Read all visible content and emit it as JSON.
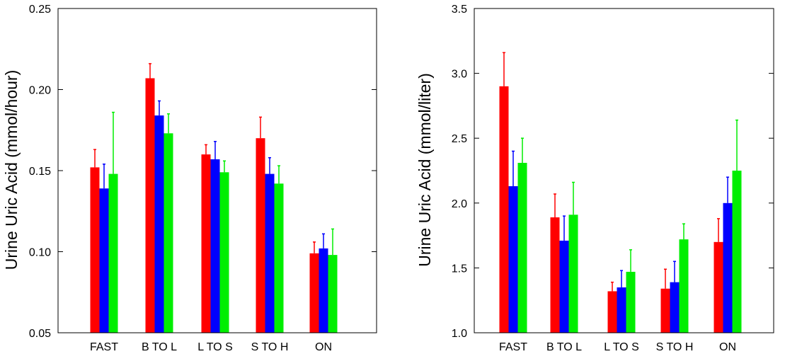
{
  "chart_data": [
    {
      "type": "bar",
      "title": "",
      "xlabel": "",
      "ylabel": "Urine Uric Acid (mmol/hour)",
      "ylim": [
        0.05,
        0.25
      ],
      "yticks": [
        "0.05",
        "0.10",
        "0.15",
        "0.20",
        "0.25"
      ],
      "categories": [
        "FAST",
        "B TO L",
        "L TO S",
        "S TO H",
        "ON"
      ],
      "grid": false,
      "series": [
        {
          "color": "#ff0000",
          "values": [
            0.152,
            0.207,
            0.16,
            0.17,
            0.099
          ],
          "errors": [
            0.011,
            0.009,
            0.006,
            0.013,
            0.007
          ]
        },
        {
          "color": "#0000ff",
          "values": [
            0.139,
            0.184,
            0.157,
            0.148,
            0.102
          ],
          "errors": [
            0.015,
            0.009,
            0.011,
            0.01,
            0.009
          ]
        },
        {
          "color": "#00ee00",
          "values": [
            0.148,
            0.173,
            0.149,
            0.142,
            0.098
          ],
          "errors": [
            0.038,
            0.012,
            0.007,
            0.011,
            0.016
          ]
        }
      ]
    },
    {
      "type": "bar",
      "title": "",
      "xlabel": "",
      "ylabel": "Urine Uric Acid (mmol/liter)",
      "ylim": [
        1.0,
        3.5
      ],
      "yticks": [
        "1.0",
        "1.5",
        "2.0",
        "2.5",
        "3.0",
        "3.5"
      ],
      "categories": [
        "FAST",
        "B TO L",
        "L TO S",
        "S TO H",
        "ON"
      ],
      "grid": false,
      "series": [
        {
          "color": "#ff0000",
          "values": [
            2.9,
            1.89,
            1.32,
            1.34,
            1.7
          ],
          "errors": [
            0.26,
            0.18,
            0.07,
            0.15,
            0.18
          ]
        },
        {
          "color": "#0000ff",
          "values": [
            2.13,
            1.71,
            1.35,
            1.39,
            2.0
          ],
          "errors": [
            0.27,
            0.19,
            0.13,
            0.16,
            0.2
          ]
        },
        {
          "color": "#00ee00",
          "values": [
            2.31,
            1.91,
            1.47,
            1.72,
            2.25
          ],
          "errors": [
            0.19,
            0.25,
            0.17,
            0.12,
            0.39
          ]
        }
      ]
    }
  ]
}
